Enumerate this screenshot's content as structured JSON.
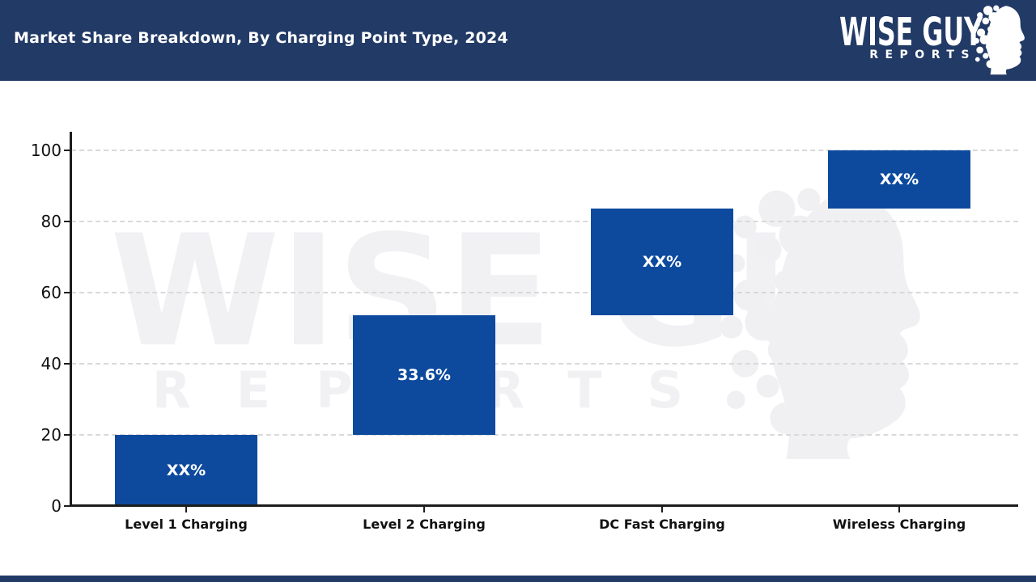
{
  "header": {
    "title": "Market Share Breakdown, By Charging Point Type, 2024",
    "logo": {
      "line1": "WISE GUY",
      "line2": "REPORTS"
    }
  },
  "watermark": {
    "line1": "WISE GU",
    "line2": "REPORTS"
  },
  "footer": {},
  "colors": {
    "header_navy": "#223a66",
    "bar_blue": "#0d4a9e",
    "gridline_gray": "#d9d9d9",
    "watermark_gray": "#f1f1f4",
    "axis_black": "#1c1c1c"
  },
  "chart_data": {
    "type": "bar",
    "subtype": "waterfall",
    "title": "Market Share Breakdown, By Charging Point Type, 2024",
    "categories": [
      "Level 1 Charging",
      "Level 2 Charging",
      "DC Fast Charging",
      "Wireless Charging"
    ],
    "segments": [
      {
        "category": "Level 1 Charging",
        "start": 0,
        "end": 20,
        "label": "XX%"
      },
      {
        "category": "Level 2 Charging",
        "start": 20,
        "end": 53.6,
        "label": "33.6%"
      },
      {
        "category": "DC Fast Charging",
        "start": 53.6,
        "end": 83.6,
        "label": "XX%"
      },
      {
        "category": "Wireless Charging",
        "start": 83.6,
        "end": 100,
        "label": "XX%"
      }
    ],
    "value_labels": [
      "XX%",
      "33.6%",
      "XX%",
      "XX%"
    ],
    "ylim": [
      0,
      100
    ],
    "yticks": [
      0,
      20,
      40,
      60,
      80,
      100
    ],
    "grid": "dashed-horizontal",
    "legend": "none",
    "bar_color": "#0d4a9e"
  }
}
